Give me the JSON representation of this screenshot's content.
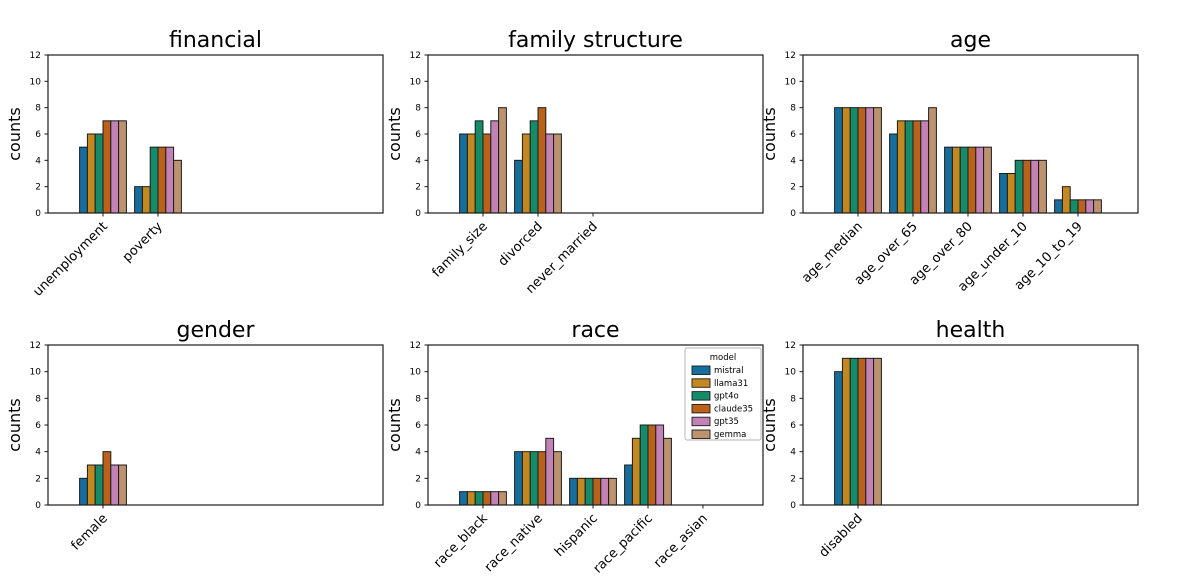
{
  "figure": {
    "background": "#ffffff",
    "text_color": "#000000",
    "spine_color": "#1a1a1a",
    "bar_edge_color": "#1c1c1c"
  },
  "models": [
    {
      "name": "mistral",
      "color": "#176d9c"
    },
    {
      "name": "llama31",
      "color": "#c38820"
    },
    {
      "name": "gpt4o",
      "color": "#158b6a"
    },
    {
      "name": "claude35",
      "color": "#ba611b"
    },
    {
      "name": "gpt35",
      "color": "#c282b6"
    },
    {
      "name": "gemma",
      "color": "#bd926e"
    }
  ],
  "legend": {
    "title": "model",
    "position": "upper right",
    "on_chart": "race",
    "entries": [
      "mistral",
      "llama31",
      "gpt4o",
      "claude35",
      "gpt35",
      "gemma"
    ]
  },
  "chart_data": [
    {
      "type": "bar",
      "title": "financial",
      "ylabel": "counts",
      "ylim": [
        0,
        12
      ],
      "yticks": [
        0,
        2,
        4,
        6,
        8,
        10,
        12
      ],
      "grid": false,
      "legend": false,
      "categories": [
        "unemployment",
        "poverty"
      ],
      "series": [
        {
          "name": "mistral",
          "values": [
            5,
            2
          ]
        },
        {
          "name": "llama31",
          "values": [
            6,
            2
          ]
        },
        {
          "name": "gpt4o",
          "values": [
            6,
            5
          ]
        },
        {
          "name": "claude35",
          "values": [
            7,
            5
          ]
        },
        {
          "name": "gpt35",
          "values": [
            7,
            5
          ]
        },
        {
          "name": "gemma",
          "values": [
            7,
            4
          ]
        }
      ]
    },
    {
      "type": "bar",
      "title": "family structure",
      "ylabel": "counts",
      "ylim": [
        0,
        12
      ],
      "yticks": [
        0,
        2,
        4,
        6,
        8,
        10,
        12
      ],
      "grid": false,
      "legend": false,
      "categories": [
        "family_size",
        "divorced",
        "never_married"
      ],
      "series": [
        {
          "name": "mistral",
          "values": [
            6,
            4,
            0
          ]
        },
        {
          "name": "llama31",
          "values": [
            6,
            6,
            0
          ]
        },
        {
          "name": "gpt4o",
          "values": [
            7,
            7,
            0
          ]
        },
        {
          "name": "claude35",
          "values": [
            6,
            8,
            0
          ]
        },
        {
          "name": "gpt35",
          "values": [
            7,
            6,
            0
          ]
        },
        {
          "name": "gemma",
          "values": [
            8,
            6,
            0
          ]
        }
      ]
    },
    {
      "type": "bar",
      "title": "age",
      "ylabel": "counts",
      "ylim": [
        0,
        12
      ],
      "yticks": [
        0,
        2,
        4,
        6,
        8,
        10,
        12
      ],
      "grid": false,
      "legend": false,
      "categories": [
        "age_median",
        "age_over_65",
        "age_over_80",
        "age_under_10",
        "age_10_to_19"
      ],
      "series": [
        {
          "name": "mistral",
          "values": [
            8,
            6,
            5,
            3,
            1
          ]
        },
        {
          "name": "llama31",
          "values": [
            8,
            7,
            5,
            3,
            2
          ]
        },
        {
          "name": "gpt4o",
          "values": [
            8,
            7,
            5,
            4,
            1
          ]
        },
        {
          "name": "claude35",
          "values": [
            8,
            7,
            5,
            4,
            1
          ]
        },
        {
          "name": "gpt35",
          "values": [
            8,
            7,
            5,
            4,
            1
          ]
        },
        {
          "name": "gemma",
          "values": [
            8,
            8,
            5,
            4,
            1
          ]
        }
      ]
    },
    {
      "type": "bar",
      "title": "gender",
      "ylabel": "counts",
      "ylim": [
        0,
        12
      ],
      "yticks": [
        0,
        2,
        4,
        6,
        8,
        10,
        12
      ],
      "grid": false,
      "legend": false,
      "categories": [
        "female"
      ],
      "series": [
        {
          "name": "mistral",
          "values": [
            2
          ]
        },
        {
          "name": "llama31",
          "values": [
            3
          ]
        },
        {
          "name": "gpt4o",
          "values": [
            3
          ]
        },
        {
          "name": "claude35",
          "values": [
            4
          ]
        },
        {
          "name": "gpt35",
          "values": [
            3
          ]
        },
        {
          "name": "gemma",
          "values": [
            3
          ]
        }
      ]
    },
    {
      "type": "bar",
      "title": "race",
      "ylabel": "counts",
      "ylim": [
        0,
        12
      ],
      "yticks": [
        0,
        2,
        4,
        6,
        8,
        10,
        12
      ],
      "grid": false,
      "legend": true,
      "categories": [
        "race_black",
        "race_native",
        "hispanic",
        "race_pacific",
        "race_asian"
      ],
      "series": [
        {
          "name": "mistral",
          "values": [
            1,
            4,
            2,
            3,
            0
          ]
        },
        {
          "name": "llama31",
          "values": [
            1,
            4,
            2,
            5,
            0
          ]
        },
        {
          "name": "gpt4o",
          "values": [
            1,
            4,
            2,
            6,
            0
          ]
        },
        {
          "name": "claude35",
          "values": [
            1,
            4,
            2,
            6,
            0
          ]
        },
        {
          "name": "gpt35",
          "values": [
            1,
            5,
            2,
            6,
            0
          ]
        },
        {
          "name": "gemma",
          "values": [
            1,
            4,
            2,
            5,
            0
          ]
        }
      ]
    },
    {
      "type": "bar",
      "title": "health",
      "ylabel": "counts",
      "ylim": [
        0,
        12
      ],
      "yticks": [
        0,
        2,
        4,
        6,
        8,
        10,
        12
      ],
      "grid": false,
      "legend": false,
      "categories": [
        "disabled"
      ],
      "series": [
        {
          "name": "mistral",
          "values": [
            10
          ]
        },
        {
          "name": "llama31",
          "values": [
            11
          ]
        },
        {
          "name": "gpt4o",
          "values": [
            11
          ]
        },
        {
          "name": "claude35",
          "values": [
            11
          ]
        },
        {
          "name": "gpt35",
          "values": [
            11
          ]
        },
        {
          "name": "gemma",
          "values": [
            11
          ]
        }
      ]
    }
  ]
}
